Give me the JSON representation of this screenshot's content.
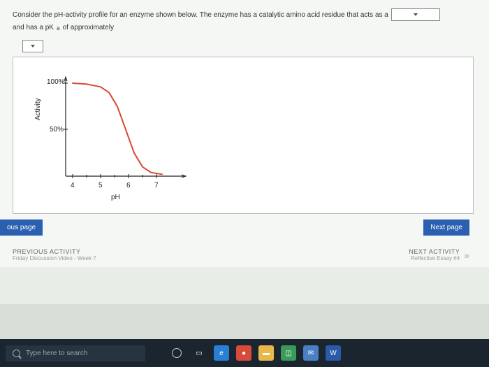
{
  "question": {
    "part1": "Consider the pH-activity profile for an enzyme shown below. The enzyme has a catalytic amino acid residue that acts as a",
    "part2": "and has a pK",
    "sub": "a",
    "part3": "of approximately"
  },
  "chart": {
    "type": "line",
    "x_axis_label": "pH",
    "y_axis_label": "Activity",
    "x_ticks": [
      4,
      5,
      6,
      7
    ],
    "y_ticks": [
      "100%",
      "50%"
    ],
    "xlim": [
      3.7,
      7.5
    ],
    "ylim": [
      0,
      105
    ],
    "curve_color": "#d94a2e",
    "curve_width": 2,
    "axis_color": "#222222",
    "background_color": "#ffffff",
    "points": [
      {
        "x": 4.0,
        "y": 100
      },
      {
        "x": 4.5,
        "y": 99
      },
      {
        "x": 5.0,
        "y": 96
      },
      {
        "x": 5.3,
        "y": 90
      },
      {
        "x": 5.6,
        "y": 75
      },
      {
        "x": 5.9,
        "y": 50
      },
      {
        "x": 6.2,
        "y": 25
      },
      {
        "x": 6.5,
        "y": 10
      },
      {
        "x": 6.8,
        "y": 4
      },
      {
        "x": 7.2,
        "y": 2
      }
    ]
  },
  "nav": {
    "prev_label": "ous page",
    "next_label": "Next page"
  },
  "activity": {
    "prev_title": "PREVIOUS ACTIVITY",
    "prev_sub": "Friday Discussion Video - Week 7",
    "next_title": "NEXT ACTIVITY",
    "next_sub": "Reflective Essay #4"
  },
  "taskbar": {
    "search_placeholder": "Type here to search",
    "icons": [
      {
        "name": "cortana",
        "bg": "transparent",
        "glyph": "circle"
      },
      {
        "name": "taskview",
        "bg": "transparent",
        "glyph": "▭"
      },
      {
        "name": "edge",
        "bg": "#2a7fd4",
        "glyph": "e"
      },
      {
        "name": "chrome",
        "bg": "#d84a3a",
        "glyph": "●"
      },
      {
        "name": "files",
        "bg": "#e8b84a",
        "glyph": "▬"
      },
      {
        "name": "store",
        "bg": "#3a9a5a",
        "glyph": "◫"
      },
      {
        "name": "mail",
        "bg": "#4a7fc4",
        "glyph": "✉"
      },
      {
        "name": "word",
        "bg": "#2a5aa8",
        "glyph": "W"
      }
    ]
  },
  "colors": {
    "page_bg": "#f5f7f5",
    "button_bg": "#2b5fb0",
    "taskbar_bg": "#1a2530"
  }
}
